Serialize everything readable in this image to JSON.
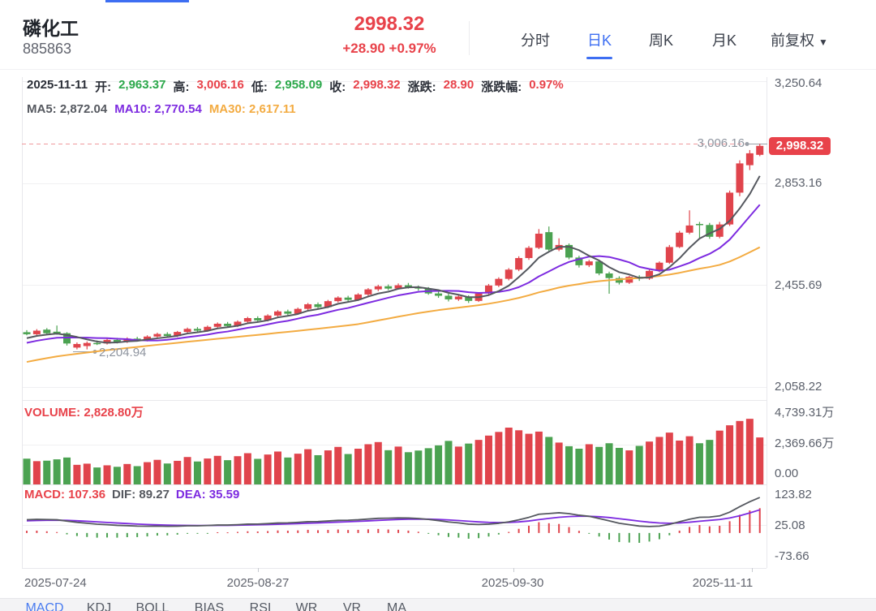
{
  "header": {
    "title": "磷化工",
    "code": "885863",
    "price": "2998.32",
    "change": "+28.90 +0.97%",
    "tabs": [
      {
        "label": "分时"
      },
      {
        "label": "日K"
      },
      {
        "label": "周K"
      },
      {
        "label": "月K"
      }
    ],
    "adjust_label": "前复权"
  },
  "info": {
    "date": "2025-11-11",
    "open_label": "开:",
    "open": "2,963.37",
    "high_label": "高:",
    "high": "3,006.16",
    "low_label": "低:",
    "low": "2,958.09",
    "close_label": "收:",
    "close": "2,998.32",
    "chg_label": "涨跌:",
    "chg": "28.90",
    "chg_pct_label": "涨跌幅:",
    "chg_pct": "0.97%",
    "ma5": "MA5: 2,872.04",
    "ma10": "MA10: 2,770.54",
    "ma30": "MA30: 2,617.11"
  },
  "price_axis": [
    "3,250.64",
    "2,853.16",
    "2,455.69",
    "2,058.22"
  ],
  "volume_axis": [
    "4,739.31万",
    "2,369.66万",
    "0.00"
  ],
  "macd_axis": [
    "123.82",
    "25.08",
    "-73.66"
  ],
  "x_axis": [
    "2025-07-24",
    "2025-08-27",
    "2025-09-30",
    "2025-11-11"
  ],
  "annotations": {
    "high_line_label": "3,006.16",
    "price_tag": "2,998.32",
    "low_point_label": "2,204.94"
  },
  "volume_title": "VOLUME: 2,828.80万",
  "macd_title": {
    "macd": "MACD: 107.36",
    "dif": "DIF: 89.27",
    "dea": "DEA: 35.59"
  },
  "indicator_tabs": [
    "MACD",
    "KDJ",
    "BOLL",
    "BIAS",
    "RSI",
    "WR",
    "VR",
    "MA"
  ],
  "colors": {
    "up": "#e0444c",
    "down": "#4ba251",
    "ma5": "#55585f",
    "ma10": "#7d2be0",
    "ma30": "#f3ab41",
    "dif": "#55585f",
    "dea": "#7d2be0",
    "grid": "#f0f0f2",
    "border": "#e8e8ec",
    "dash_red": "#f0999c",
    "marker_gray": "#9aa0a8"
  },
  "chart_data": {
    "type": "candlestick",
    "title": "磷化工 885863 日K",
    "x_tick_labels": [
      "2025-07-24",
      "2025-08-27",
      "2025-09-30",
      "2025-11-11"
    ],
    "price_ylim": [
      2058.22,
      3250.64
    ],
    "price_grid": [
      3250.64,
      2853.16,
      2455.69,
      2058.22
    ],
    "volume_ylim": [
      0,
      4739.31
    ],
    "volume_grid": [
      2369.66
    ],
    "macd_ylim": [
      -73.66,
      123.82
    ],
    "macd_grid": [
      25.08
    ],
    "high_marker": 3006.16,
    "low_marker": 2204.94,
    "last_price": 2998.32,
    "last_day": {
      "open": 2963.37,
      "high": 3006.16,
      "low": 2958.09,
      "close": 2998.32,
      "change": 28.9,
      "change_pct": 0.97,
      "volume_wan": 2828.8,
      "macd": 107.36,
      "dif": 89.27,
      "dea": 35.59,
      "ma5": 2872.04,
      "ma10": 2770.54,
      "ma30": 2617.11
    },
    "candles": [
      [
        2272,
        2280,
        2260,
        2264
      ],
      [
        2264,
        2284,
        2258,
        2278
      ],
      [
        2282,
        2288,
        2262,
        2268
      ],
      [
        2274,
        2298,
        2262,
        2267
      ],
      [
        2268,
        2272,
        2220,
        2228
      ],
      [
        2212,
        2232,
        2205,
        2226
      ],
      [
        2218,
        2236,
        2204.94,
        2230
      ],
      [
        2230,
        2240,
        2222,
        2228
      ],
      [
        2228,
        2248,
        2224,
        2242
      ],
      [
        2242,
        2250,
        2228,
        2234
      ],
      [
        2234,
        2252,
        2230,
        2247
      ],
      [
        2247,
        2254,
        2236,
        2240
      ],
      [
        2240,
        2260,
        2236,
        2255
      ],
      [
        2255,
        2270,
        2250,
        2265
      ],
      [
        2265,
        2272,
        2252,
        2257
      ],
      [
        2257,
        2277,
        2253,
        2273
      ],
      [
        2273,
        2290,
        2268,
        2285
      ],
      [
        2285,
        2292,
        2272,
        2278
      ],
      [
        2278,
        2298,
        2274,
        2293
      ],
      [
        2293,
        2310,
        2288,
        2305
      ],
      [
        2305,
        2312,
        2290,
        2296
      ],
      [
        2296,
        2318,
        2292,
        2313
      ],
      [
        2313,
        2332,
        2308,
        2327
      ],
      [
        2327,
        2334,
        2312,
        2318
      ],
      [
        2318,
        2342,
        2314,
        2337
      ],
      [
        2337,
        2358,
        2332,
        2353
      ],
      [
        2353,
        2360,
        2338,
        2344
      ],
      [
        2344,
        2368,
        2340,
        2363
      ],
      [
        2363,
        2386,
        2358,
        2381
      ],
      [
        2381,
        2388,
        2364,
        2370
      ],
      [
        2370,
        2398,
        2366,
        2393
      ],
      [
        2393,
        2412,
        2388,
        2407
      ],
      [
        2407,
        2414,
        2392,
        2398
      ],
      [
        2398,
        2424,
        2394,
        2419
      ],
      [
        2419,
        2444,
        2414,
        2439
      ],
      [
        2439,
        2457,
        2432,
        2451
      ],
      [
        2451,
        2458,
        2436,
        2442
      ],
      [
        2442,
        2462,
        2438,
        2455
      ],
      [
        2455,
        2464,
        2442,
        2448
      ],
      [
        2448,
        2454,
        2434,
        2442
      ],
      [
        2442,
        2448,
        2418,
        2423
      ],
      [
        2423,
        2432,
        2406,
        2414
      ],
      [
        2414,
        2422,
        2392,
        2400
      ],
      [
        2400,
        2418,
        2394,
        2411
      ],
      [
        2411,
        2416,
        2386,
        2394
      ],
      [
        2394,
        2428,
        2390,
        2423
      ],
      [
        2423,
        2460,
        2418,
        2454
      ],
      [
        2454,
        2486,
        2448,
        2480
      ],
      [
        2480,
        2522,
        2474,
        2516
      ],
      [
        2516,
        2568,
        2510,
        2561
      ],
      [
        2561,
        2608,
        2554,
        2601
      ],
      [
        2601,
        2674,
        2596,
        2656
      ],
      [
        2662,
        2684,
        2586,
        2594
      ],
      [
        2594,
        2638,
        2588,
        2612
      ],
      [
        2612,
        2618,
        2556,
        2563
      ],
      [
        2563,
        2570,
        2524,
        2533
      ],
      [
        2533,
        2554,
        2526,
        2548
      ],
      [
        2548,
        2552,
        2494,
        2501
      ],
      [
        2501,
        2508,
        2422,
        2483
      ],
      [
        2483,
        2490,
        2458,
        2465
      ],
      [
        2465,
        2492,
        2460,
        2488
      ],
      [
        2488,
        2494,
        2472,
        2481
      ],
      [
        2481,
        2516,
        2476,
        2511
      ],
      [
        2511,
        2548,
        2506,
        2543
      ],
      [
        2543,
        2612,
        2538,
        2604
      ],
      [
        2604,
        2667,
        2600,
        2660
      ],
      [
        2660,
        2747,
        2654,
        2688
      ],
      [
        2694,
        2702,
        2640,
        2690
      ],
      [
        2690,
        2698,
        2636,
        2644
      ],
      [
        2644,
        2702,
        2638,
        2692
      ],
      [
        2692,
        2824,
        2686,
        2816
      ],
      [
        2816,
        2942,
        2802,
        2930
      ],
      [
        2923,
        2982,
        2904,
        2969.42
      ],
      [
        2963.37,
        3006.16,
        2958.09,
        2998.32
      ]
    ],
    "volumes_wan": [
      1550,
      1400,
      1430,
      1510,
      1620,
      1180,
      1250,
      1020,
      1150,
      1060,
      1230,
      1100,
      1340,
      1480,
      1260,
      1420,
      1650,
      1380,
      1560,
      1720,
      1460,
      1700,
      1880,
      1540,
      1800,
      1980,
      1620,
      1850,
      2120,
      1760,
      2050,
      2260,
      1830,
      2150,
      2420,
      2550,
      2060,
      2280,
      1940,
      2040,
      2180,
      2350,
      2620,
      2280,
      2460,
      2680,
      2940,
      3160,
      3420,
      3260,
      3050,
      3180,
      2860,
      2520,
      2300,
      2150,
      2420,
      2260,
      2480,
      2200,
      2050,
      2320,
      2580,
      2860,
      3120,
      2640,
      2900,
      2480,
      2680,
      3240,
      3560,
      3820,
      3950,
      2828.8
    ],
    "ma_seed": [
      2040,
      2048,
      2055,
      2062,
      2070,
      2078,
      2085,
      2092,
      2100,
      2108,
      2115,
      2122,
      2130,
      2138,
      2145,
      2152,
      2160,
      2168,
      2175,
      2182,
      2190,
      2198,
      2205,
      2212,
      2220,
      2228,
      2235,
      2242,
      2248,
      2255
    ]
  }
}
